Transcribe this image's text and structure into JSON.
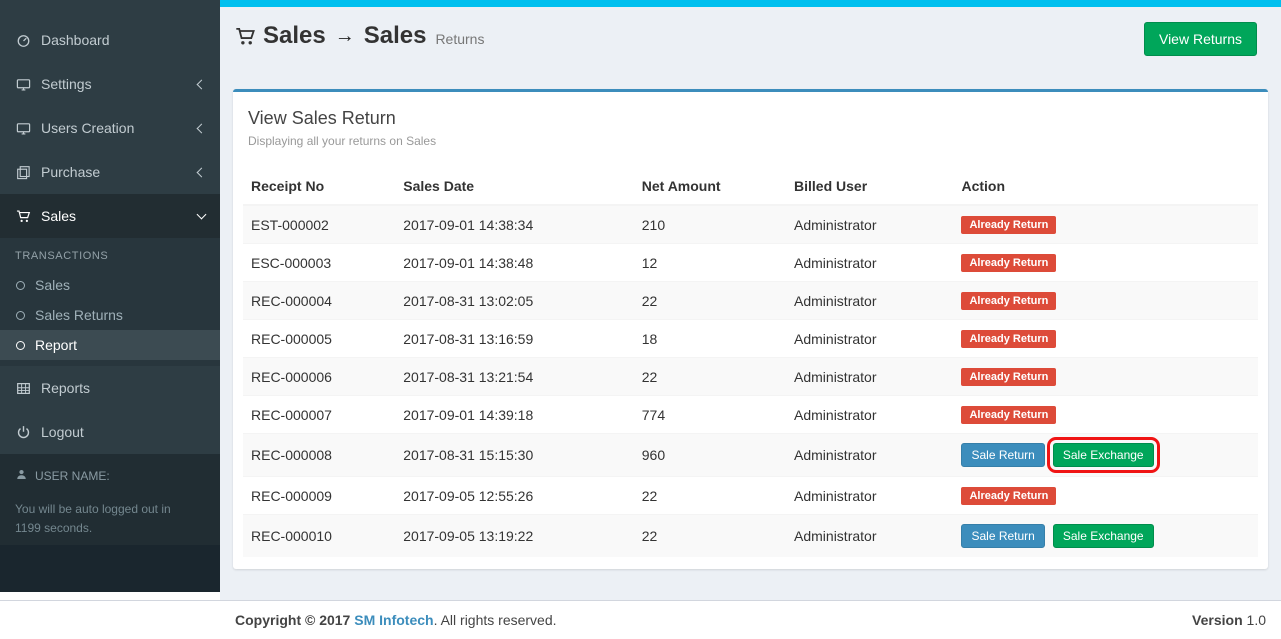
{
  "colors": {
    "topbar": "#00c0ef",
    "accent": "#3c8dbc",
    "success": "#00a65a",
    "danger": "#dd4b39",
    "annotation": "#f01414",
    "sidebar": "#2e3d44",
    "sidebar-active": "#222d32"
  },
  "sidebar": {
    "items": [
      {
        "label": "Dashboard"
      },
      {
        "label": "Settings"
      },
      {
        "label": "Users Creation"
      },
      {
        "label": "Purchase"
      },
      {
        "label": "Sales"
      }
    ],
    "transactions_header": "TRANSACTIONS",
    "submenu": [
      {
        "label": "Sales"
      },
      {
        "label": "Sales Returns"
      },
      {
        "label": "Report"
      }
    ],
    "reports_label": "Reports",
    "logout_label": "Logout",
    "user_label": "USER NAME:",
    "auto_logout_line1": "You will be auto logged out in",
    "auto_logout_line2": "1199 seconds."
  },
  "header": {
    "title_primary": "Sales",
    "arrow": "→",
    "title_secondary": "Sales",
    "title_suffix": "Returns",
    "view_returns_button": "View Returns"
  },
  "panel": {
    "title": "View Sales Return",
    "subtitle": "Displaying all your returns on Sales"
  },
  "table": {
    "headers": [
      "Receipt No",
      "Sales Date",
      "Net Amount",
      "Billed User",
      "Action"
    ],
    "rows": [
      {
        "receipt": "EST-000002",
        "date": "2017-09-01 14:38:34",
        "amount": "210",
        "user": "Administrator",
        "actions": [
          {
            "label": "Already Return",
            "style": "danger"
          }
        ]
      },
      {
        "receipt": "ESC-000003",
        "date": "2017-09-01 14:38:48",
        "amount": "12",
        "user": "Administrator",
        "actions": [
          {
            "label": "Already Return",
            "style": "danger"
          }
        ]
      },
      {
        "receipt": "REC-000004",
        "date": "2017-08-31 13:02:05",
        "amount": "22",
        "user": "Administrator",
        "actions": [
          {
            "label": "Already Return",
            "style": "danger"
          }
        ]
      },
      {
        "receipt": "REC-000005",
        "date": "2017-08-31 13:16:59",
        "amount": "18",
        "user": "Administrator",
        "actions": [
          {
            "label": "Already Return",
            "style": "danger"
          }
        ]
      },
      {
        "receipt": "REC-000006",
        "date": "2017-08-31 13:21:54",
        "amount": "22",
        "user": "Administrator",
        "actions": [
          {
            "label": "Already Return",
            "style": "danger"
          }
        ]
      },
      {
        "receipt": "REC-000007",
        "date": "2017-09-01 14:39:18",
        "amount": "774",
        "user": "Administrator",
        "actions": [
          {
            "label": "Already Return",
            "style": "danger"
          }
        ]
      },
      {
        "receipt": "REC-000008",
        "date": "2017-08-31 15:15:30",
        "amount": "960",
        "user": "Administrator",
        "actions": [
          {
            "label": "Sale Return",
            "style": "primary"
          },
          {
            "label": "Sale Exchange",
            "style": "success",
            "highlight": true
          }
        ]
      },
      {
        "receipt": "REC-000009",
        "date": "2017-09-05 12:55:26",
        "amount": "22",
        "user": "Administrator",
        "actions": [
          {
            "label": "Already Return",
            "style": "danger"
          }
        ]
      },
      {
        "receipt": "REC-000010",
        "date": "2017-09-05 13:19:22",
        "amount": "22",
        "user": "Administrator",
        "actions": [
          {
            "label": "Sale Return",
            "style": "primary"
          },
          {
            "label": "Sale Exchange",
            "style": "success"
          }
        ]
      }
    ]
  },
  "footer": {
    "copyright_prefix": "Copyright © 2017 ",
    "company": "SM Infotech",
    "copyright_suffix": ". All rights reserved.",
    "version_label": "Version",
    "version_value": "1.0"
  }
}
